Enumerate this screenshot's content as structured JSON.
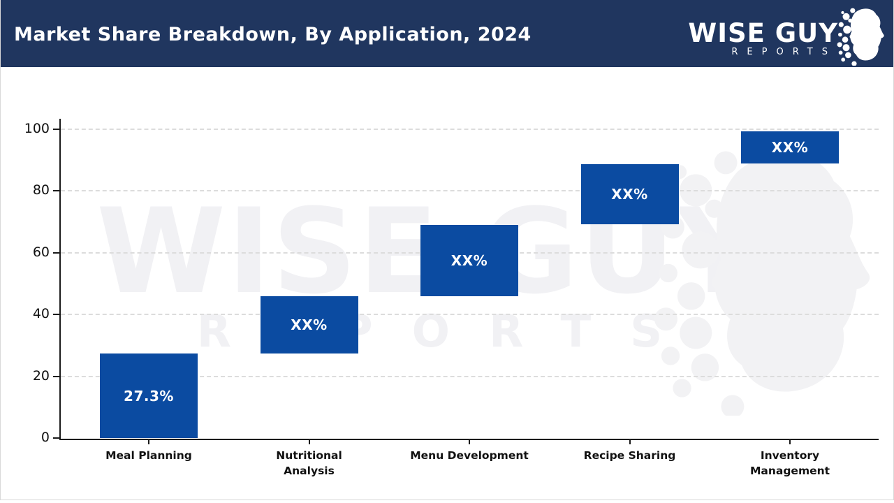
{
  "header": {
    "title": "Market Share Breakdown, By Application, 2024",
    "background_color": "#20365f",
    "brand": {
      "name_line1": "WISE GUY",
      "name_line2": "REPORTS"
    }
  },
  "watermark": {
    "line1": "WISE GUY",
    "line2": "REPORTS"
  },
  "chart_data": {
    "type": "bar",
    "subtype": "waterfall",
    "title": "Market Share Breakdown, By Application, 2024",
    "categories": [
      "Meal Planning",
      "Nutritional\nAnalysis",
      "Menu Development",
      "Recipe Sharing",
      "Inventory\nManagement"
    ],
    "segments": [
      {
        "category": "Meal Planning",
        "start": 0,
        "end": 27.3,
        "value_label": "27.3%"
      },
      {
        "category": "Nutritional Analysis",
        "start": 27.3,
        "end": 45.8,
        "value_label": "XX%"
      },
      {
        "category": "Menu Development",
        "start": 45.9,
        "end": 69.0,
        "value_label": "XX%"
      },
      {
        "category": "Recipe Sharing",
        "start": 69.2,
        "end": 88.6,
        "value_label": "XX%"
      },
      {
        "category": "Inventory Management",
        "start": 88.9,
        "end": 99.2,
        "value_label": "XX%"
      }
    ],
    "xlabel": "",
    "ylabel": "",
    "ylim": [
      0,
      103.5
    ],
    "yticks": [
      0,
      20,
      40,
      60,
      80,
      100
    ],
    "grid": "horizontal-dashed",
    "legend": "none",
    "bar_color": "#0b4ba1",
    "bar_label_color": "#ffffff",
    "axis_color": "#1a1a1a",
    "gridline_color": "#dcdcdc"
  }
}
